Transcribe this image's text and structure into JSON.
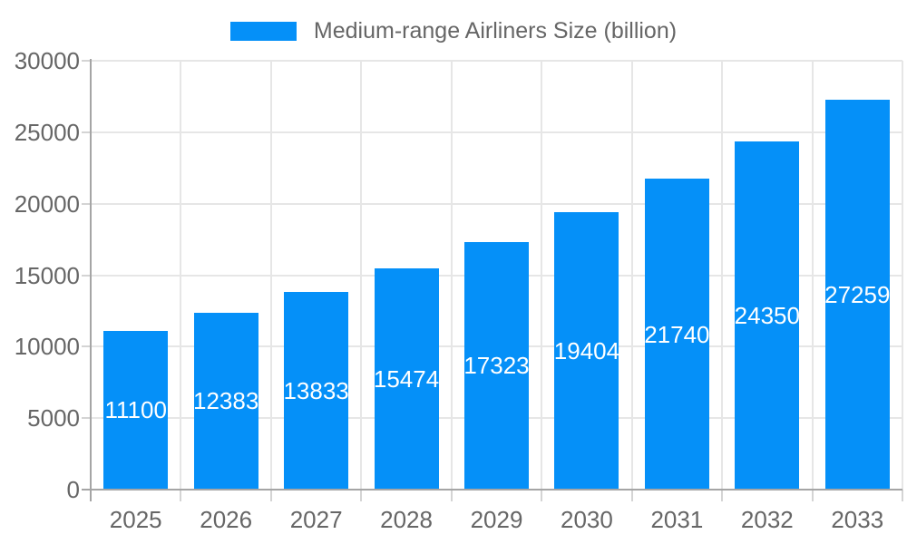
{
  "chart_data": {
    "type": "bar",
    "title": "",
    "legend": {
      "label": "Medium-range Airliners Size (billion)",
      "position": "top"
    },
    "categories": [
      "2025",
      "2026",
      "2027",
      "2028",
      "2029",
      "2030",
      "2031",
      "2032",
      "2033"
    ],
    "series": [
      {
        "name": "Medium-range Airliners Size (billion)",
        "values": [
          11100,
          12383,
          13833,
          15474,
          17323,
          19404,
          21740,
          24350,
          27259
        ]
      }
    ],
    "bar_value_labels": [
      "11100",
      "12383",
      "13833",
      "15474",
      "17323",
      "19404",
      "21740",
      "24350",
      "27259"
    ],
    "xlabel": "",
    "ylabel": "",
    "ylim": [
      0,
      30000
    ],
    "ytick_step": 5000,
    "ytick_labels": [
      "0",
      "5000",
      "10000",
      "15000",
      "20000",
      "25000",
      "30000"
    ],
    "grid": true
  },
  "colors": {
    "bar": "#0590f8",
    "bar_label": "#ffffff",
    "text": "#666666",
    "gridline": "#e6e6e6",
    "axis_line": "#a5a5a5",
    "tick": "#d4d4d4",
    "background": "#ffffff"
  }
}
